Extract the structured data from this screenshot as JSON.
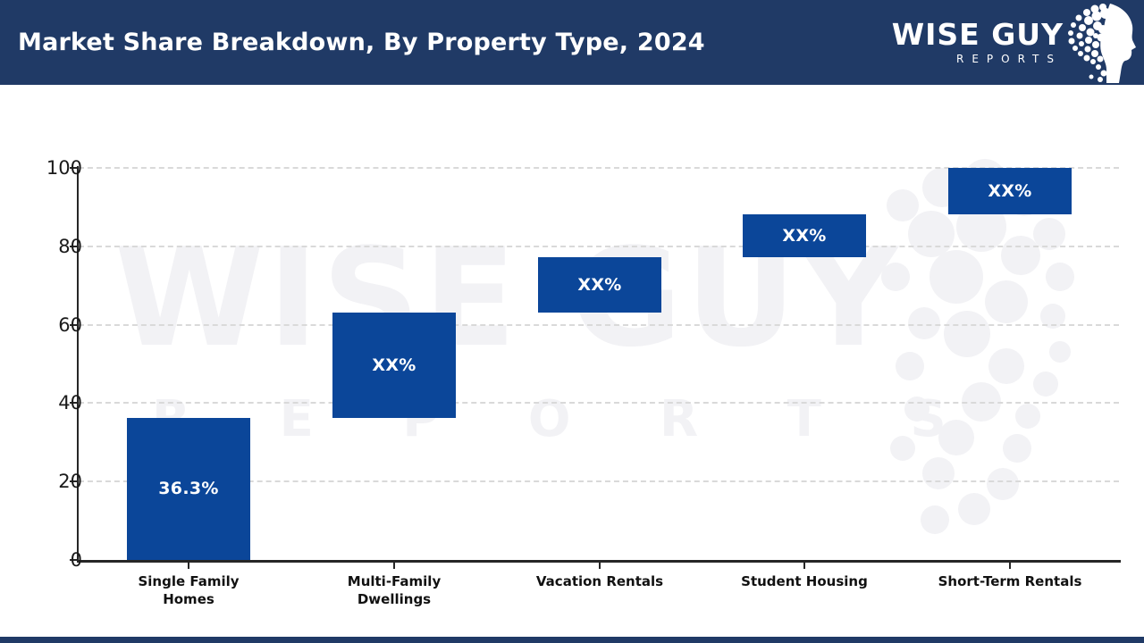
{
  "header": {
    "title": "Market Share Breakdown, By Property Type, 2024",
    "bg_color": "#203a66",
    "logo": {
      "line1": "WISE GUY",
      "line2": "REPORTS"
    }
  },
  "footer": {
    "bg_color": "#203a66"
  },
  "watermark": {
    "line1": "WISE GUY",
    "line2": "R E P O R T S"
  },
  "chart_data": {
    "type": "bar",
    "subtype": "floating-waterfall",
    "title": "Market Share Breakdown, By Property Type, 2024",
    "categories": [
      "Single Family Homes",
      "Multi-Family Dwellings",
      "Vacation Rentals",
      "Student Housing",
      "Short-Term Rentals"
    ],
    "category_lines": [
      [
        "Single Family",
        "Homes"
      ],
      [
        "Multi-Family",
        "Dwellings"
      ],
      [
        "Vacation Rentals"
      ],
      [
        "Student Housing"
      ],
      [
        "Short-Term Rentals"
      ]
    ],
    "segments": [
      {
        "category": "Single Family Homes",
        "start": 0,
        "end": 36.3,
        "label": "36.3%"
      },
      {
        "category": "Multi-Family Dwellings",
        "start": 36.3,
        "end": 63,
        "label": "XX%"
      },
      {
        "category": "Vacation Rentals",
        "start": 63,
        "end": 77.3,
        "label": "XX%"
      },
      {
        "category": "Student Housing",
        "start": 77.3,
        "end": 88.2,
        "label": "XX%"
      },
      {
        "category": "Short-Term Rentals",
        "start": 88.2,
        "end": 100,
        "label": "XX%"
      }
    ],
    "y_ticks": [
      0,
      20,
      40,
      60,
      80,
      100
    ],
    "ylim": [
      0,
      104.5
    ],
    "xlabel": "",
    "ylabel": "",
    "grid": "dashed-horizontal",
    "legend": "none",
    "bar_color": "#0b4699",
    "bar_label_color": "#ffffff",
    "axis_color": "#262626"
  }
}
